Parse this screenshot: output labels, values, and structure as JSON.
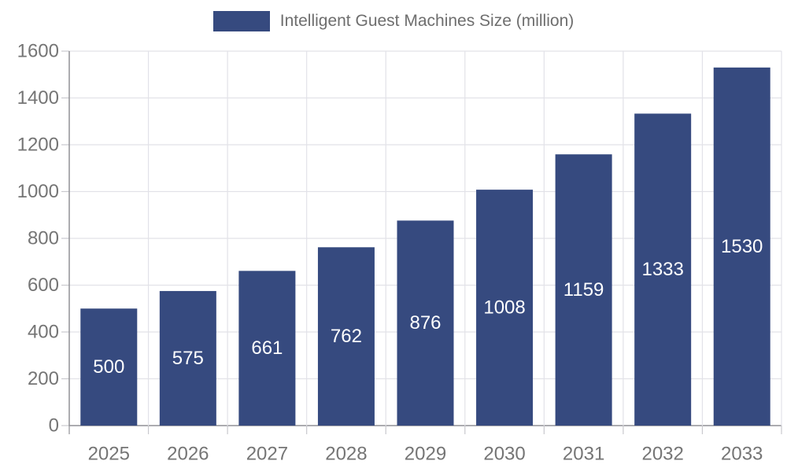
{
  "chart_data": {
    "type": "bar",
    "title": "",
    "categories": [
      "2025",
      "2026",
      "2027",
      "2028",
      "2029",
      "2030",
      "2031",
      "2032",
      "2033"
    ],
    "series": [
      {
        "name": "Intelligent Guest Machines Size (million)",
        "values": [
          500,
          575,
          661,
          762,
          876,
          1008,
          1159,
          1333,
          1530
        ]
      }
    ],
    "xlabel": "",
    "ylabel": "",
    "ylim": [
      0,
      1600
    ],
    "ytick_step": 200,
    "ytick_labels": [
      "0",
      "200",
      "400",
      "600",
      "800",
      "1000",
      "1200",
      "1400",
      "1600"
    ],
    "grid": true,
    "legend_position": "top-center",
    "value_label_position": "inside-center",
    "colors": {
      "bar": "#364A7F",
      "value_label": "#FFFFFF",
      "axis_line": "#919196",
      "grid_line": "#E2E2E8",
      "tick_mark": "#C9C9CE",
      "tick_label": "#757575",
      "legend_text": "#6E6E6E",
      "background": "#FFFFFF"
    }
  }
}
